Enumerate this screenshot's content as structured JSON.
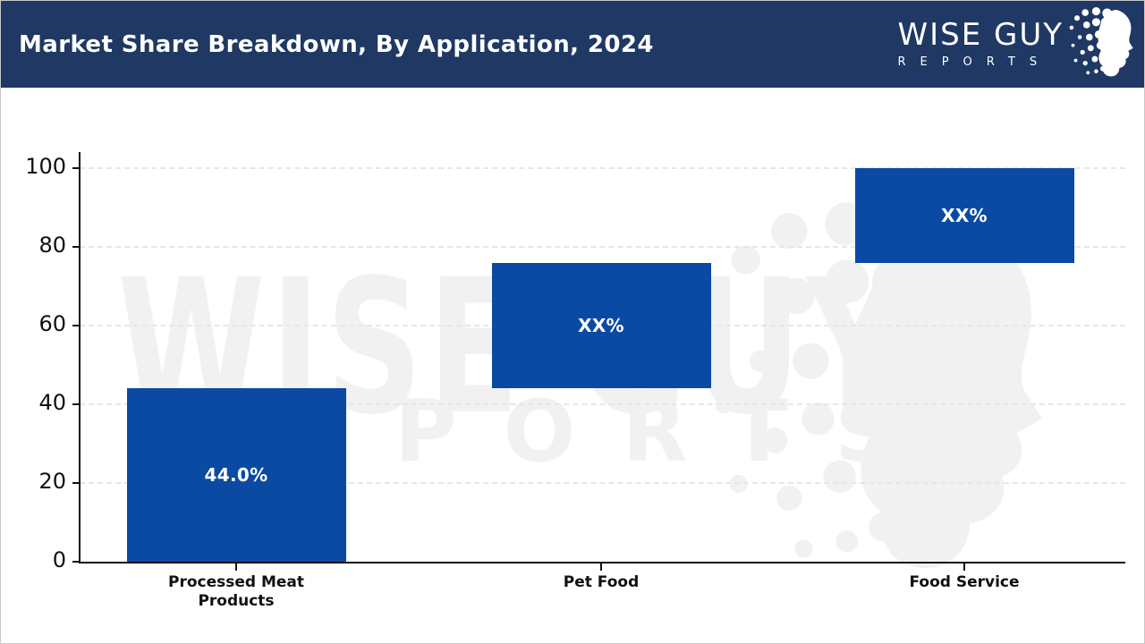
{
  "header": {
    "title": "Market Share Breakdown, By Application, 2024",
    "logo": {
      "name": "WISE GUY",
      "sub": "REPORTS"
    }
  },
  "watermark": {
    "name": "WISE GUY",
    "sub": "REPORTS"
  },
  "chart_data": {
    "type": "bar",
    "subtype": "floating-segment-breakdown",
    "title": "Market Share Breakdown, By Application, 2024",
    "categories": [
      "Processed Meat\nProducts",
      "Pet Food",
      "Food Service"
    ],
    "bars": [
      {
        "category": "Processed Meat Products",
        "label": "44.0%",
        "start": 0,
        "end": 44,
        "value": 44.0
      },
      {
        "category": "Pet Food",
        "label": "XX%",
        "start": 44,
        "end": 76,
        "value": 32
      },
      {
        "category": "Food Service",
        "label": "XX%",
        "start": 76,
        "end": 100,
        "value": 24
      }
    ],
    "xlabel": "",
    "ylabel": "",
    "ylim": [
      0,
      100
    ],
    "yticks": [
      0,
      20,
      40,
      60,
      80,
      100
    ],
    "grid": "horizontal-dashed",
    "legend": "none",
    "bar_color": "#0b4aa2",
    "bar_label_color": "#ffffff"
  },
  "colors": {
    "header_bg": "#1f3864",
    "bar": "#0b4aa2",
    "grid": "#e6e6e6",
    "axis": "#111111",
    "watermark": "#f1f1f1",
    "background": "#ffffff"
  }
}
